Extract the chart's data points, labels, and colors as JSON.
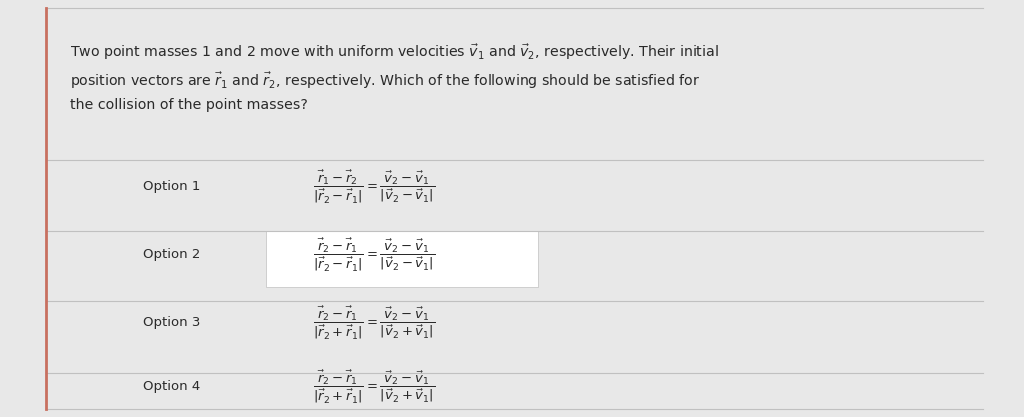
{
  "bg_color": "#e8e8e8",
  "card_color": "#f5f5f5",
  "white_box_color": "#ffffff",
  "line_color": "#c0c0c0",
  "text_color": "#2a2a2a",
  "red_line_color": "#c87060",
  "title_lines": [
    "Two point masses 1 and 2 move with uniform velocities $\\vec{v}_1$ and $\\vec{v}_2$, respectively. Their initial",
    "position vectors are $\\vec{r}_1$ and $\\vec{r}_2$, respectively. Which of the following should be satisfied for",
    "the collision of the point masses?"
  ],
  "options": [
    {
      "label": "Option 1",
      "expr": "$\\dfrac{\\vec{r}_1 - \\vec{r}_2}{|\\vec{r}_2 - \\vec{r}_1|} = \\dfrac{\\vec{v}_2 - \\vec{v}_1}{|\\vec{v}_2 - \\vec{v}_1|}$",
      "has_box": false
    },
    {
      "label": "Option 2",
      "expr": "$\\dfrac{\\vec{r}_2 - \\vec{r}_1}{|\\vec{r}_2 - \\vec{r}_1|} = \\dfrac{\\vec{v}_2 - \\vec{v}_1}{|\\vec{v}_2 - \\vec{v}_1|}$",
      "has_box": true
    },
    {
      "label": "Option 3",
      "expr": "$\\dfrac{\\vec{r}_2 - \\vec{r}_1}{|\\vec{r}_2 + \\vec{r}_1|} = \\dfrac{\\vec{v}_2 - \\vec{v}_1}{|\\vec{v}_2 + \\vec{v}_1|}$",
      "has_box": false
    },
    {
      "label": "Option 4",
      "expr": "$\\dfrac{\\vec{r}_2 - \\vec{r}_1}{|\\vec{r}_2 + \\vec{r}_1|} = \\dfrac{\\vec{v}_2 - \\vec{v}_1}{|\\vec{v}_2 + \\vec{v}_1|}$",
      "has_box": false
    }
  ],
  "figsize": [
    10.24,
    4.17
  ],
  "dpi": 100
}
